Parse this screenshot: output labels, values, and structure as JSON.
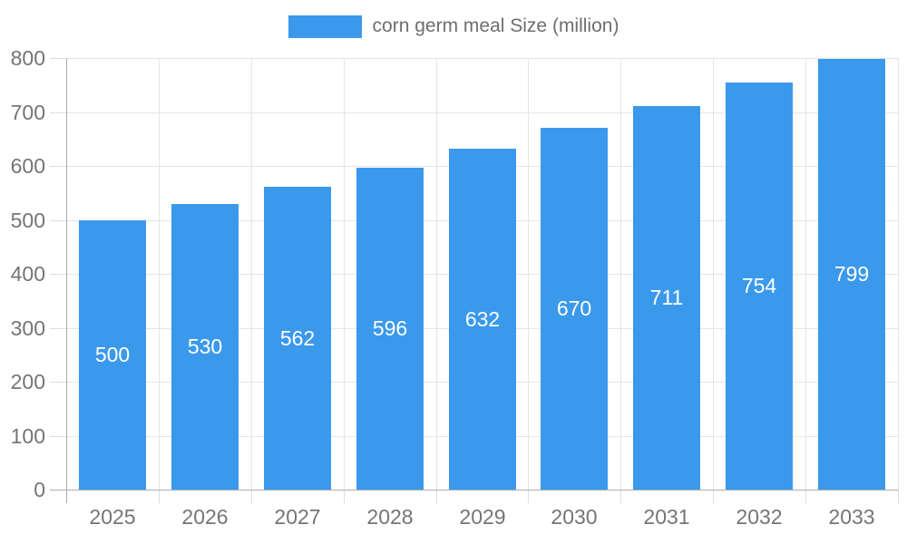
{
  "chart_data": {
    "type": "bar",
    "title": "",
    "legend": "corn germ meal Size (million)",
    "legend_position": "top",
    "categories": [
      "2025",
      "2026",
      "2027",
      "2028",
      "2029",
      "2030",
      "2031",
      "2032",
      "2033"
    ],
    "series": [
      {
        "name": "corn germ meal Size (million)",
        "values": [
          500,
          530,
          562,
          596,
          632,
          670,
          711,
          754,
          799
        ]
      }
    ],
    "xlabel": "",
    "ylabel": "",
    "ylim": [
      0,
      800
    ],
    "ytick_step": 100,
    "grid": true,
    "bar_labels_inside": true,
    "colors": {
      "bar": "#3B99EC",
      "bar_label": "#FFFFFF",
      "axis_text": "#757575",
      "legend_text": "#6E6E6E",
      "grid_line": "#E5E5E5",
      "tick_line": "#DDDDDD",
      "axis_line": "#ADADAD"
    }
  }
}
